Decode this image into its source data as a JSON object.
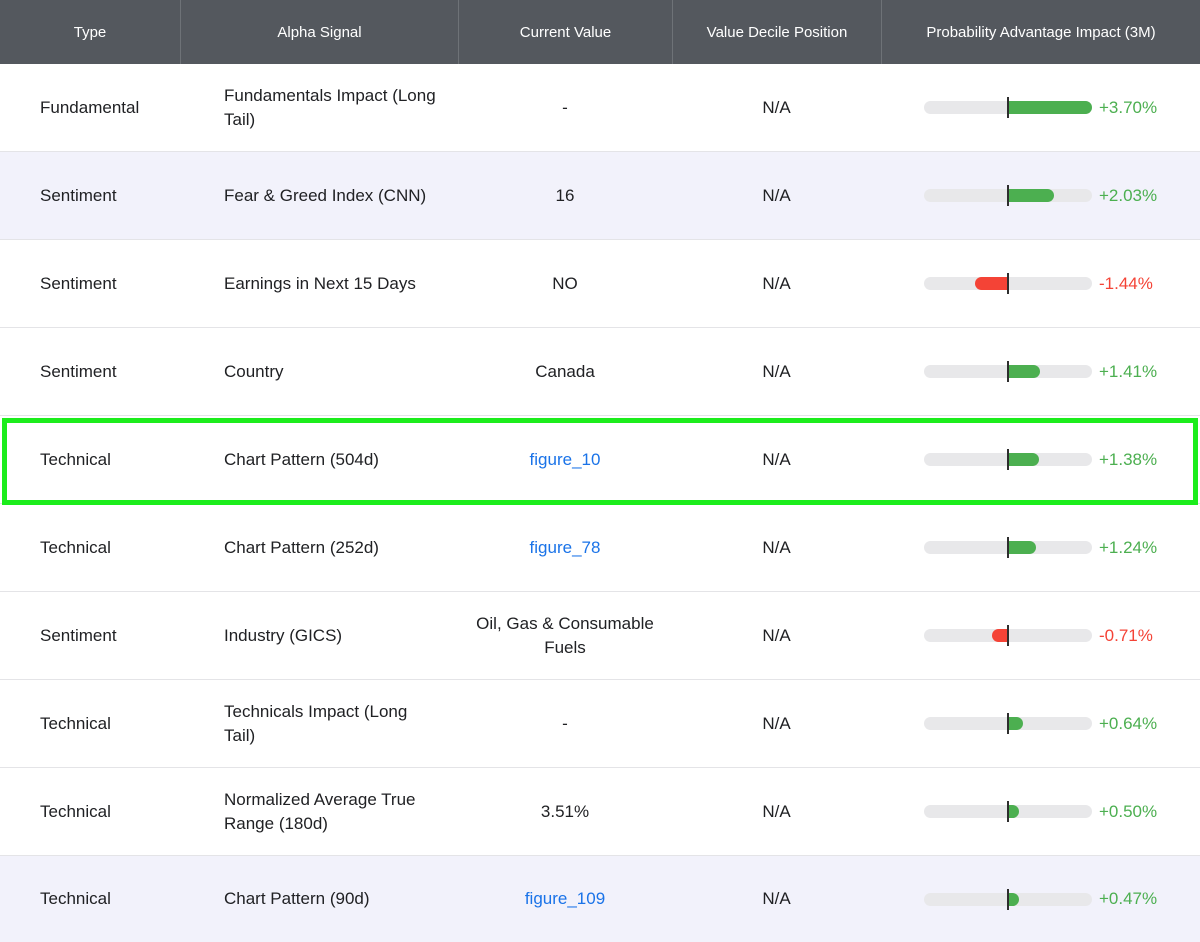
{
  "table": {
    "columns": [
      "Type",
      "Alpha Signal",
      "Current Value",
      "Value Decile Position",
      "Probability Advantage Impact (3M)"
    ],
    "impact_scale_max": 3.7,
    "rows": [
      {
        "type": "Fundamental",
        "signal": "Fundamentals Impact (Long Tail)",
        "current_value": "-",
        "is_link": false,
        "decile": "N/A",
        "impact_label": "+3.70%",
        "impact_value": 3.7,
        "striped": false,
        "highlighted": false
      },
      {
        "type": "Sentiment",
        "signal": "Fear & Greed Index (CNN)",
        "current_value": "16",
        "is_link": false,
        "decile": "N/A",
        "impact_label": "+2.03%",
        "impact_value": 2.03,
        "striped": true,
        "highlighted": false
      },
      {
        "type": "Sentiment",
        "signal": "Earnings in Next 15 Days",
        "current_value": "NO",
        "is_link": false,
        "decile": "N/A",
        "impact_label": "-1.44%",
        "impact_value": -1.44,
        "striped": false,
        "highlighted": false
      },
      {
        "type": "Sentiment",
        "signal": "Country",
        "current_value": "Canada",
        "is_link": false,
        "decile": "N/A",
        "impact_label": "+1.41%",
        "impact_value": 1.41,
        "striped": false,
        "highlighted": false
      },
      {
        "type": "Technical",
        "signal": "Chart Pattern (504d)",
        "current_value": "figure_10",
        "is_link": true,
        "decile": "N/A",
        "impact_label": "+1.38%",
        "impact_value": 1.38,
        "striped": false,
        "highlighted": true
      },
      {
        "type": "Technical",
        "signal": "Chart Pattern (252d)",
        "current_value": "figure_78",
        "is_link": true,
        "decile": "N/A",
        "impact_label": "+1.24%",
        "impact_value": 1.24,
        "striped": false,
        "highlighted": false
      },
      {
        "type": "Sentiment",
        "signal": "Industry (GICS)",
        "current_value": "Oil, Gas & Consumable Fuels",
        "is_link": false,
        "decile": "N/A",
        "impact_label": "-0.71%",
        "impact_value": -0.71,
        "striped": false,
        "highlighted": false
      },
      {
        "type": "Technical",
        "signal": "Technicals Impact (Long Tail)",
        "current_value": "-",
        "is_link": false,
        "decile": "N/A",
        "impact_label": "+0.64%",
        "impact_value": 0.64,
        "striped": false,
        "highlighted": false
      },
      {
        "type": "Technical",
        "signal": "Normalized Average True Range (180d)",
        "current_value": "3.51%",
        "is_link": false,
        "decile": "N/A",
        "impact_label": "+0.50%",
        "impact_value": 0.5,
        "striped": false,
        "highlighted": false
      },
      {
        "type": "Technical",
        "signal": "Chart Pattern (90d)",
        "current_value": "figure_109",
        "is_link": true,
        "decile": "N/A",
        "impact_label": "+0.47%",
        "impact_value": 0.47,
        "striped": true,
        "highlighted": false
      }
    ]
  },
  "colors": {
    "positive": "#4caf50",
    "negative": "#f44336",
    "link": "#1a73e8",
    "highlight_border": "#1ced1c",
    "header_bg": "#54585e",
    "stripe_bg": "#f2f2fb",
    "track": "#e8e8ea",
    "tick": "#2e2e2e"
  }
}
